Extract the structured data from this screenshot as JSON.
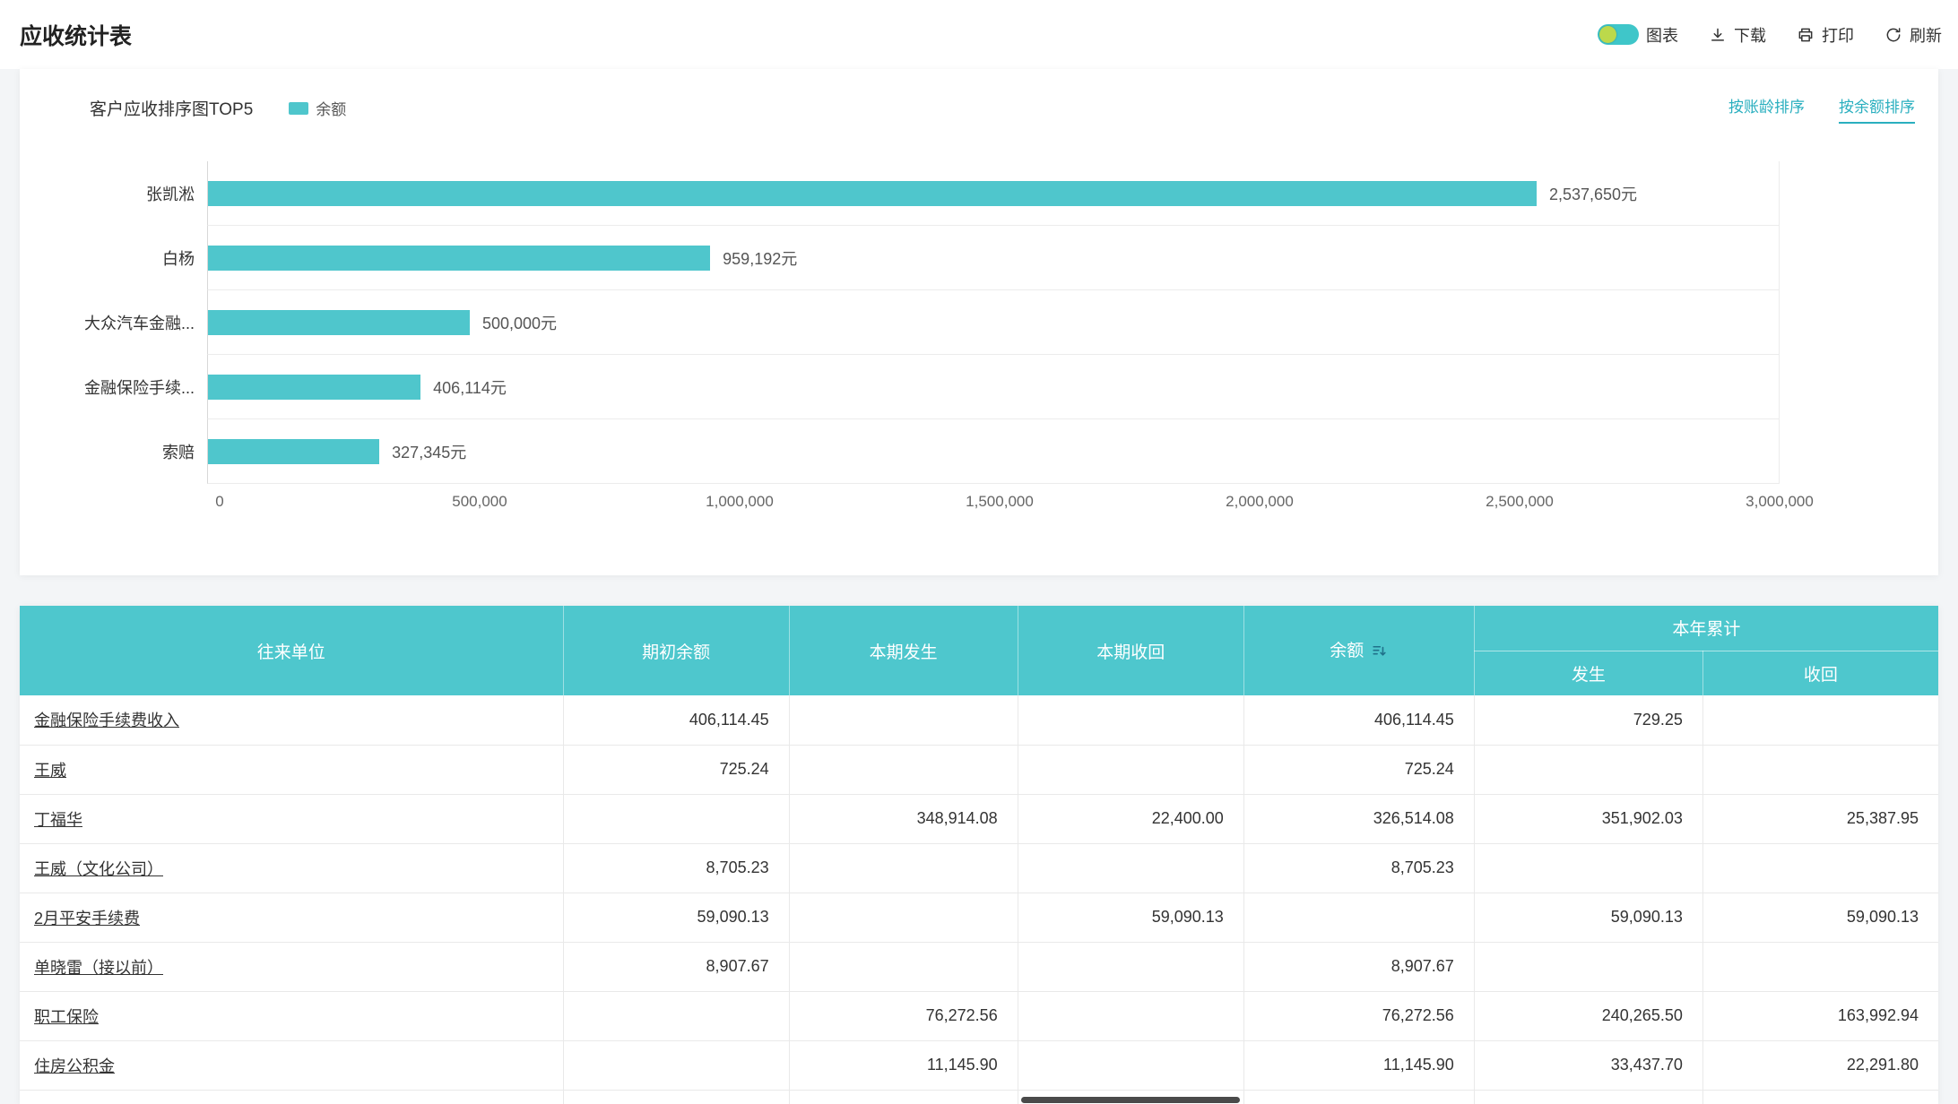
{
  "page": {
    "title": "应收统计表"
  },
  "toolbar": {
    "chart_toggle_label": "图表",
    "download_label": "下载",
    "print_label": "打印",
    "refresh_label": "刷新"
  },
  "chart_card": {
    "title": "客户应收排序图TOP5",
    "legend_label": "余额",
    "sort_by_aging_label": "按账龄排序",
    "sort_by_balance_label": "按余额排序",
    "active_sort": "按余额排序"
  },
  "chart_data": {
    "type": "bar",
    "orientation": "horizontal",
    "title": "客户应收排序图TOP5",
    "legend": [
      "余额"
    ],
    "categories": [
      "张凯淞",
      "白杨",
      "大众汽车金融...",
      "金融保险手续...",
      "索赔"
    ],
    "values": [
      2537650,
      959192,
      500000,
      406114,
      327345
    ],
    "value_labels": [
      "2,537,650元",
      "959,192元",
      "500,000元",
      "406,114元",
      "327,345元"
    ],
    "xlim": [
      0,
      3000000
    ],
    "x_ticks": [
      "0",
      "500,000",
      "1,000,000",
      "1,500,000",
      "2,000,000",
      "2,500,000",
      "3,000,000"
    ],
    "bar_color": "#4fc6cc",
    "grid": "row-separators"
  },
  "table": {
    "headers": {
      "unit": "往来单位",
      "beginning_balance": "期初余额",
      "current_occurred": "本期发生",
      "current_recovered": "本期收回",
      "balance": "余额",
      "year_total": "本年累计",
      "year_occurred": "发生",
      "year_recovered": "收回"
    },
    "rows": [
      {
        "unit": "金融保险手续费收入",
        "beginning_balance": "406,114.45",
        "current_occurred": "",
        "current_recovered": "",
        "balance": "406,114.45",
        "year_occurred": "729.25",
        "year_recovered": ""
      },
      {
        "unit": "王威",
        "beginning_balance": "725.24",
        "current_occurred": "",
        "current_recovered": "",
        "balance": "725.24",
        "year_occurred": "",
        "year_recovered": ""
      },
      {
        "unit": "丁福华",
        "beginning_balance": "",
        "current_occurred": "348,914.08",
        "current_recovered": "22,400.00",
        "balance": "326,514.08",
        "year_occurred": "351,902.03",
        "year_recovered": "25,387.95"
      },
      {
        "unit": "王威（文化公司）",
        "beginning_balance": "8,705.23",
        "current_occurred": "",
        "current_recovered": "",
        "balance": "8,705.23",
        "year_occurred": "",
        "year_recovered": ""
      },
      {
        "unit": "2月平安手续费",
        "beginning_balance": "59,090.13",
        "current_occurred": "",
        "current_recovered": "59,090.13",
        "balance": "",
        "year_occurred": "59,090.13",
        "year_recovered": "59,090.13"
      },
      {
        "unit": "单晓雷（接以前）",
        "beginning_balance": "8,907.67",
        "current_occurred": "",
        "current_recovered": "",
        "balance": "8,907.67",
        "year_occurred": "",
        "year_recovered": ""
      },
      {
        "unit": "职工保险",
        "beginning_balance": "",
        "current_occurred": "76,272.56",
        "current_recovered": "",
        "balance": "76,272.56",
        "year_occurred": "240,265.50",
        "year_recovered": "163,992.94"
      },
      {
        "unit": "住房公积金",
        "beginning_balance": "",
        "current_occurred": "11,145.90",
        "current_recovered": "",
        "balance": "11,145.90",
        "year_occurred": "33,437.70",
        "year_recovered": "22,291.80"
      }
    ]
  },
  "colors": {
    "accent_teal": "#4ec7cd",
    "bar_teal": "#4fc6cc",
    "toggle_track": "#3fc6c9",
    "toggle_knob": "#bcd94b",
    "sort_link": "#2aafbf"
  }
}
